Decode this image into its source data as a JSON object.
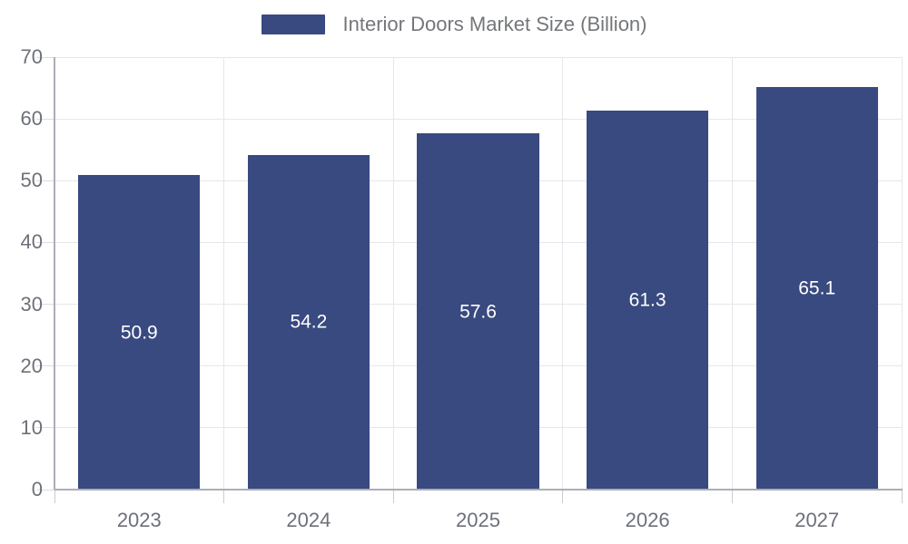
{
  "legend": {
    "label": "Interior Doors Market Size (Billion)"
  },
  "colors": {
    "bar": "#394A80",
    "grid": "#E5E7EA",
    "axis_line": "#ABAEB5",
    "x_tick": "#C9CCD2",
    "y_tick": "#DADDE2",
    "tick_label": "#6E7079",
    "legend_text": "#747679",
    "value_label": "#FFFFFF",
    "background": "#FFFFFF"
  },
  "chart_data": {
    "type": "bar",
    "title": "",
    "categories": [
      "2023",
      "2024",
      "2025",
      "2026",
      "2027"
    ],
    "series": [
      {
        "name": "Interior Doors Market Size (Billion)",
        "values": [
          50.9,
          54.2,
          57.6,
          61.3,
          65.1
        ]
      }
    ],
    "value_labels": [
      "50.9",
      "54.2",
      "57.6",
      "61.3",
      "65.1"
    ],
    "value_label_position": "inside-center",
    "xlabel": "",
    "ylabel": "",
    "ylim": [
      0,
      70
    ],
    "ytick_step": 10,
    "ytick_labels": [
      "0",
      "10",
      "20",
      "30",
      "40",
      "50",
      "60",
      "70"
    ],
    "grid": true,
    "legend_position": "top-center"
  }
}
